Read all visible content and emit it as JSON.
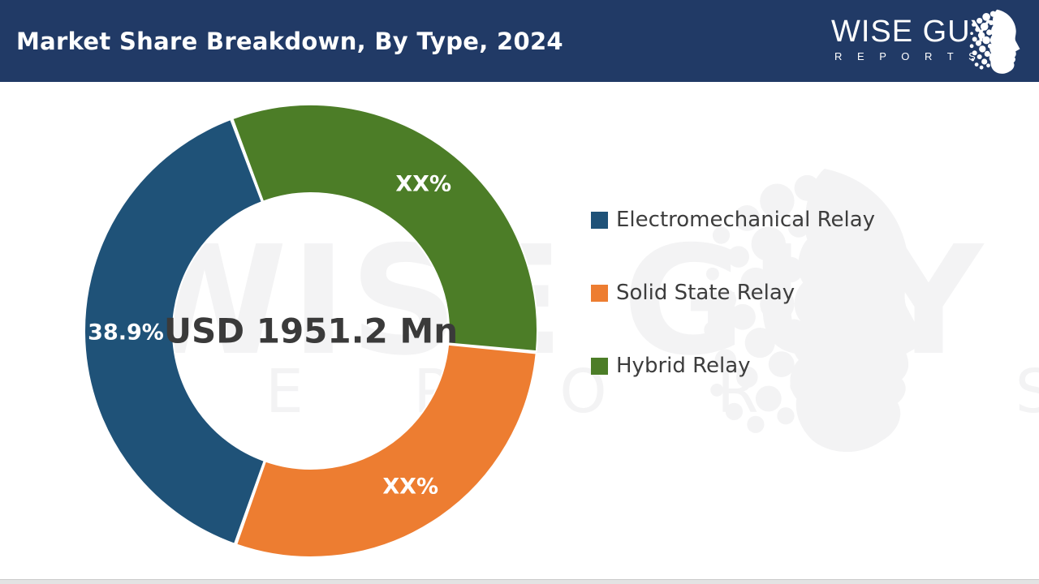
{
  "header": {
    "title": "Market Share Breakdown, By Type, 2024",
    "bg_color": "#213a66",
    "logo": {
      "name": "WISE GUY",
      "subtitle": "R E P O R T S"
    }
  },
  "watermark": {
    "line1": "WISE GUY",
    "line2": "R E P O R T S"
  },
  "chart_data": {
    "type": "pie",
    "subtype": "donut",
    "title": "Market Share Breakdown, By Type, 2024",
    "center_label": "USD 1951.2 Mn",
    "legend_position": "right",
    "direction": "counterclockwise",
    "start_angle_deg": 110.5,
    "center": [
      383,
      408
    ],
    "outer_radius": 279,
    "inner_radius": 170,
    "label_radius": 228,
    "gap_deg": 0.5,
    "segments": [
      {
        "id": "electromechanical",
        "name": "Electromechanical Relay",
        "display_label": "38.9%",
        "value": 38.9,
        "color": "#1f5278"
      },
      {
        "id": "solid-state",
        "name": "Solid State Relay",
        "display_label": "XX%",
        "value": 28.9,
        "value_note": "label hidden as XX%; share estimated from arc angle",
        "color": "#ed7d31"
      },
      {
        "id": "hybrid",
        "name": "Hybrid Relay",
        "display_label": "XX%",
        "value": 32.2,
        "value_note": "label hidden as XX%; share estimated from arc angle",
        "color": "#4c7d27"
      }
    ]
  }
}
